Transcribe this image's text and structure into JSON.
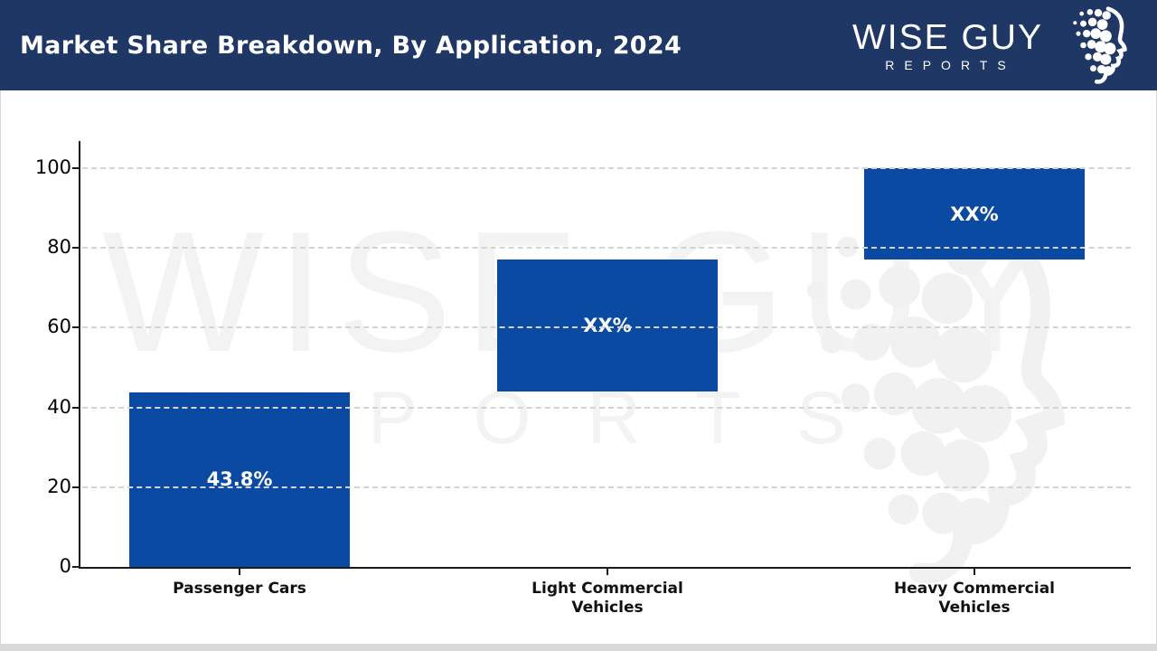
{
  "header": {
    "title": "Market Share Breakdown, By Application, 2024",
    "logo": {
      "line1": "WISE GUY",
      "line2": "REPORTS"
    }
  },
  "watermark": {
    "line1": "WISE GUY",
    "line2": "REPORTS"
  },
  "chart_data": {
    "type": "bar",
    "subtype": "floating-waterfall",
    "title": "Market Share Breakdown, By Application, 2024",
    "categories": [
      "Passenger Cars",
      "Light Commercial Vehicles",
      "Heavy Commercial Vehicles"
    ],
    "bars": [
      {
        "category": "Passenger Cars",
        "label_lines": [
          "Passenger Cars"
        ],
        "start": 0,
        "end": 43.8,
        "label": "43.8%"
      },
      {
        "category": "Light Commercial Vehicles",
        "label_lines": [
          "Light Commercial",
          "Vehicles"
        ],
        "start": 44,
        "end": 77,
        "label": "XX%"
      },
      {
        "category": "Heavy Commercial Vehicles",
        "label_lines": [
          "Heavy Commercial",
          "Vehicles"
        ],
        "start": 77,
        "end": 100,
        "label": "XX%"
      }
    ],
    "ylim": [
      0,
      100
    ],
    "yticks": [
      0,
      20,
      40,
      60,
      80,
      100
    ],
    "grid": {
      "horizontal": true,
      "style": "dashed",
      "color": "#d4d4d4"
    },
    "legend": "none",
    "bar_color": "#0b4aa2",
    "bar_label_color": "#ffffff",
    "header_color": "#1f3765",
    "xlabel": "",
    "ylabel": ""
  }
}
